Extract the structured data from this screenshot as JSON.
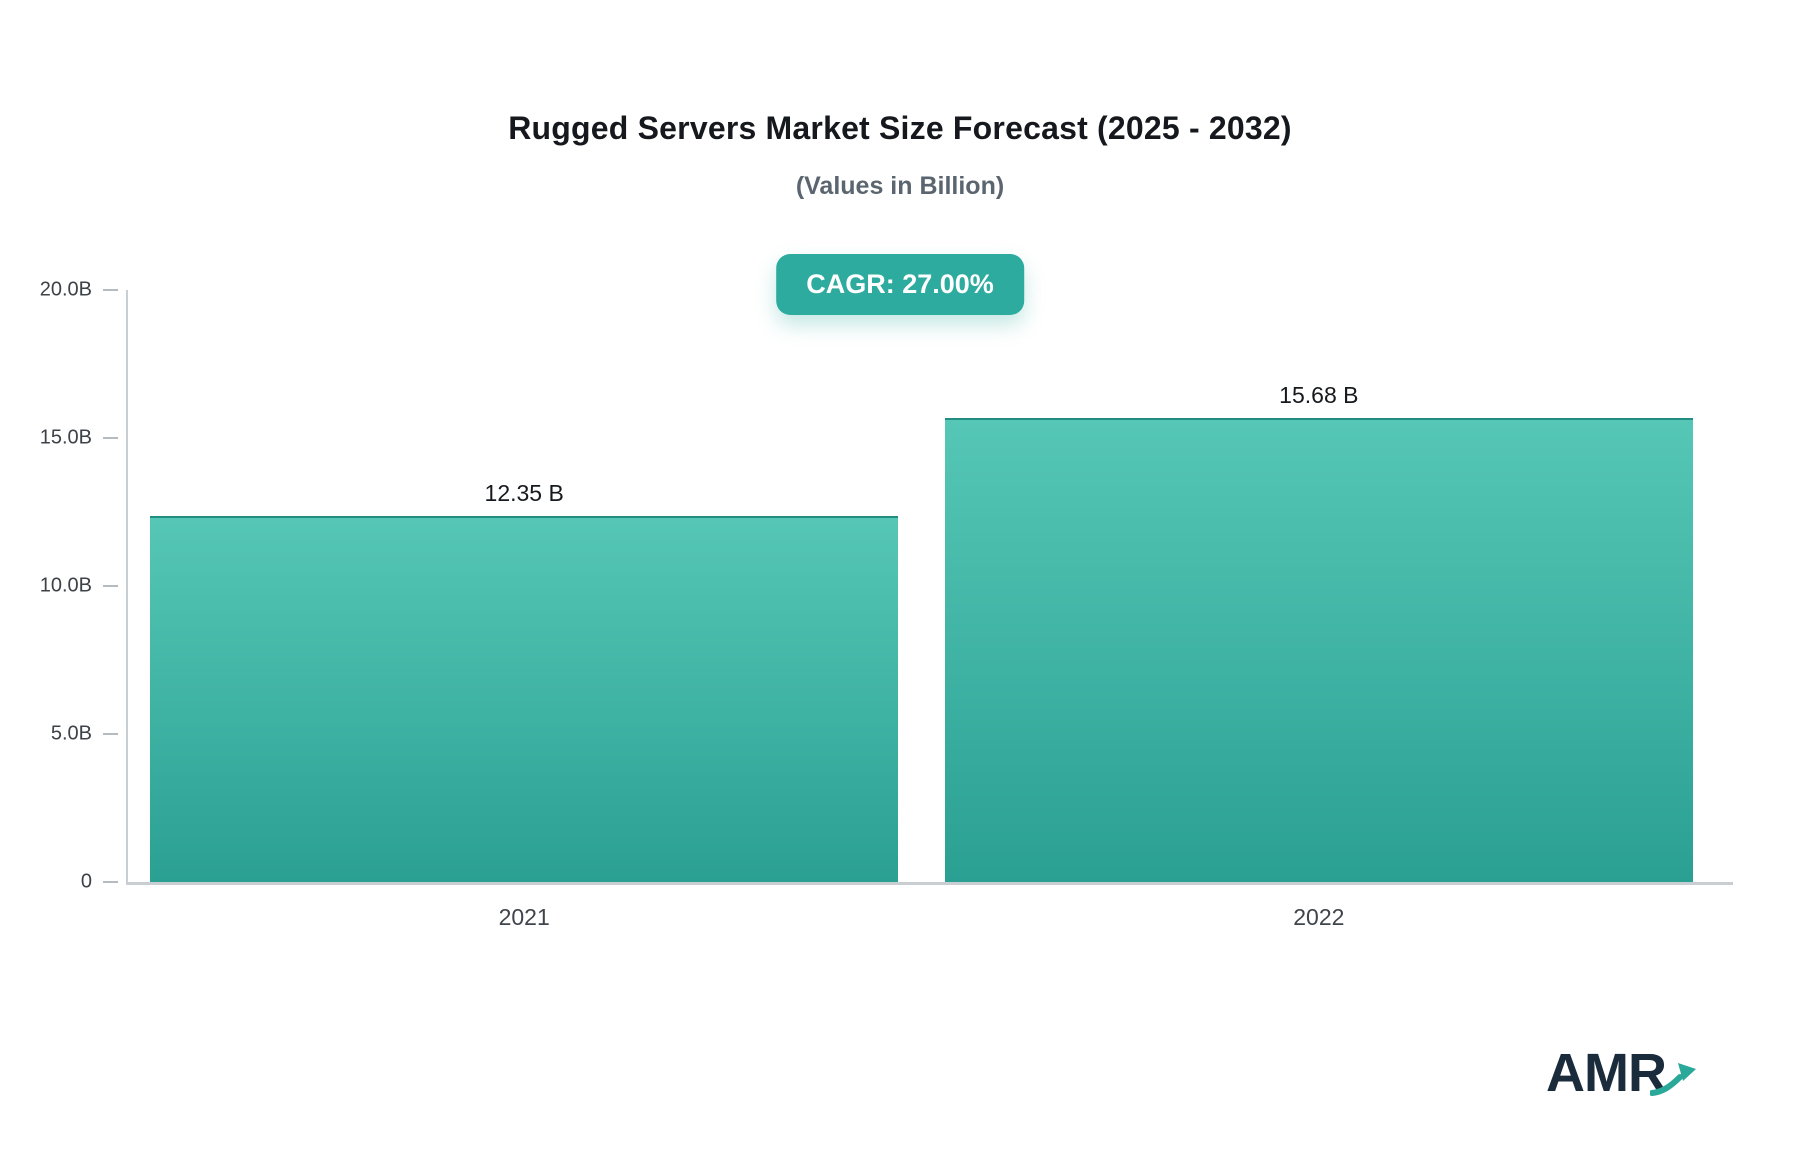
{
  "chart": {
    "title": "Rugged Servers Market Size Forecast (2025 - 2032)",
    "subtitle": "(Values in Billion)",
    "cagr_label": "CAGR: 27.00%"
  },
  "logo": {
    "text": "AMR"
  },
  "chart_data": {
    "type": "bar",
    "title": "Rugged Servers Market Size Forecast (2025 - 2032)",
    "subtitle": "(Values in Billion)",
    "annotation": "CAGR: 27.00%",
    "categories": [
      "2021",
      "2022"
    ],
    "values": [
      12.35,
      15.68
    ],
    "value_labels": [
      "12.35 B",
      "15.68 B"
    ],
    "xlabel": "",
    "ylabel": "",
    "ylim": [
      0,
      20
    ],
    "yticks": [
      {
        "label": "20.0B",
        "value": 20
      },
      {
        "label": "15.0B",
        "value": 15
      },
      {
        "label": "10.0B",
        "value": 10
      },
      {
        "label": "5.0B",
        "value": 5
      },
      {
        "label": "0",
        "value": 0
      }
    ],
    "grid": false,
    "legend_position": "none",
    "colors": {
      "bar_gradient_top": "#56c7b6",
      "bar_gradient_bottom": "#2aa093",
      "badge_bg": "#2dab9f",
      "axis": "#c9ced3",
      "tick_text": "#3c4248",
      "title_text": "#15181c",
      "subtitle_text": "#5a6570",
      "logo_text": "#1a2b3c",
      "logo_arrow": "#2aa99b"
    }
  }
}
